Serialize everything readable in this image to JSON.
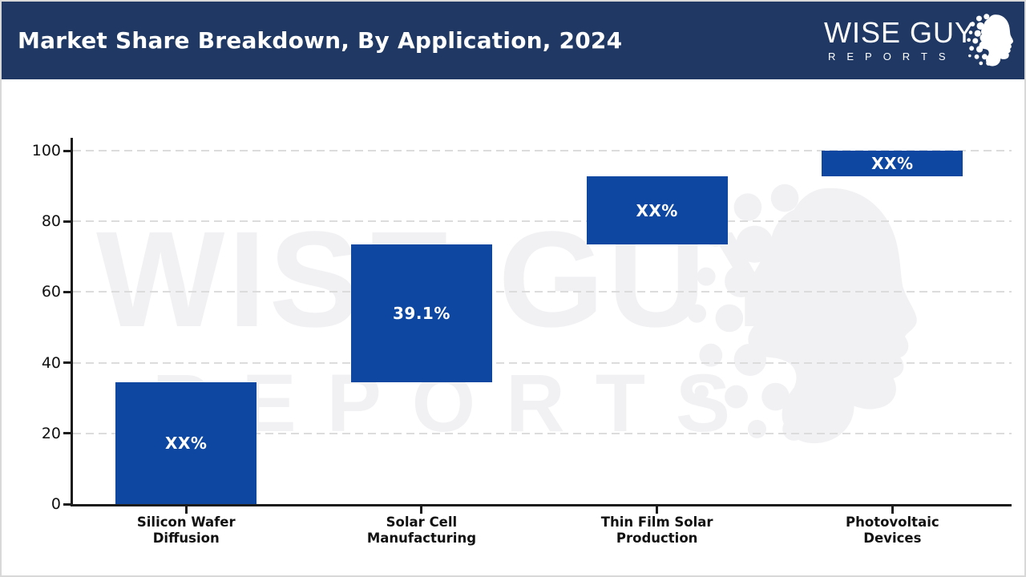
{
  "header": {
    "title": "Market Share Breakdown, By Application, 2024",
    "bg_color": "#1f3864",
    "logo": {
      "brand": "WISE GUY",
      "sub": "REPORTS"
    }
  },
  "watermark": {
    "line1": "WISE GUY",
    "line2": "REPORTS",
    "color": "#f1f1f4"
  },
  "chart_data": {
    "type": "bar",
    "subtype": "waterfall-floating-bars",
    "title": "Market Share Breakdown, By Application, 2024",
    "categories": [
      [
        "Silicon Wafer",
        "Diffusion"
      ],
      [
        "Solar Cell",
        "Manufacturing"
      ],
      [
        "Thin Film Solar",
        "Production"
      ],
      [
        "Photovoltaic",
        "Devices"
      ]
    ],
    "bar_labels": [
      "XX%",
      "39.1%",
      "XX%",
      "XX%"
    ],
    "segments": [
      {
        "start": 0,
        "end": 34.4
      },
      {
        "start": 34.4,
        "end": 73.5
      },
      {
        "start": 73.5,
        "end": 92.7
      },
      {
        "start": 92.7,
        "end": 100
      }
    ],
    "values_estimated": [
      34.4,
      39.1,
      19.2,
      7.3
    ],
    "y_axis_ticks": [
      0,
      20,
      40,
      60,
      80,
      100
    ],
    "ylim": [
      0,
      104
    ],
    "xlabel": "",
    "ylabel": "",
    "grid": "horizontal-dashed",
    "legend": "none",
    "bar_color": "#0d47a1",
    "bar_label_color": "#ffffff",
    "axis_color": "#1c1c1c",
    "gridline_color": "#dcdcdc"
  }
}
